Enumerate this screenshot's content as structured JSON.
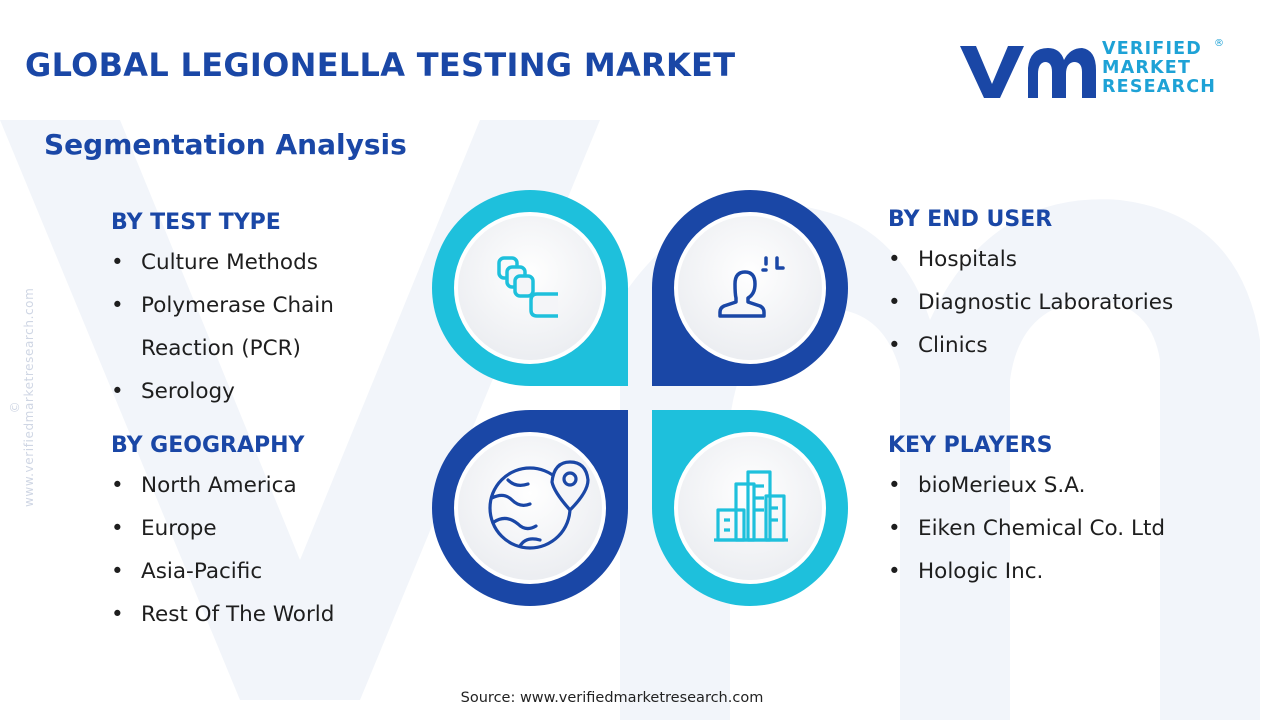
{
  "title": "GLOBAL LEGIONELLA TESTING MARKET",
  "subtitle": "Segmentation Analysis",
  "logo": {
    "line1": "VERIFIED",
    "line2": "MARKET",
    "line3": "RESEARCH",
    "registered": "®"
  },
  "side_url": "© www.verifiedmarketresearch.com",
  "sections": {
    "test_type": {
      "heading": "BY TEST TYPE",
      "items": [
        "Culture Methods",
        "Polymerase Chain",
        "Reaction (PCR)",
        "Serology"
      ]
    },
    "geography": {
      "heading": "BY GEOGRAPHY",
      "items": [
        "North America",
        "Europe",
        "Asia-Pacific",
        "Rest Of The World"
      ]
    },
    "end_user": {
      "heading": "BY END USER",
      "items": [
        "Hospitals",
        "Diagnostic Laboratories",
        "Clinics"
      ]
    },
    "key_players": {
      "heading": "KEY PLAYERS",
      "items": [
        "bioMerieux S.A.",
        "Eiken Chemical Co. Ltd",
        "Hologic Inc."
      ]
    }
  },
  "source": "Source: www.verifiedmarketresearch.com",
  "colors": {
    "dark_blue": "#1a47a6",
    "cyan": "#1ec0dc",
    "watermark": "#f1f4f9"
  },
  "icons": {
    "top_left": "layers-icon",
    "top_right": "person-icon",
    "bottom_left": "globe-pin-icon",
    "bottom_right": "buildings-icon"
  }
}
